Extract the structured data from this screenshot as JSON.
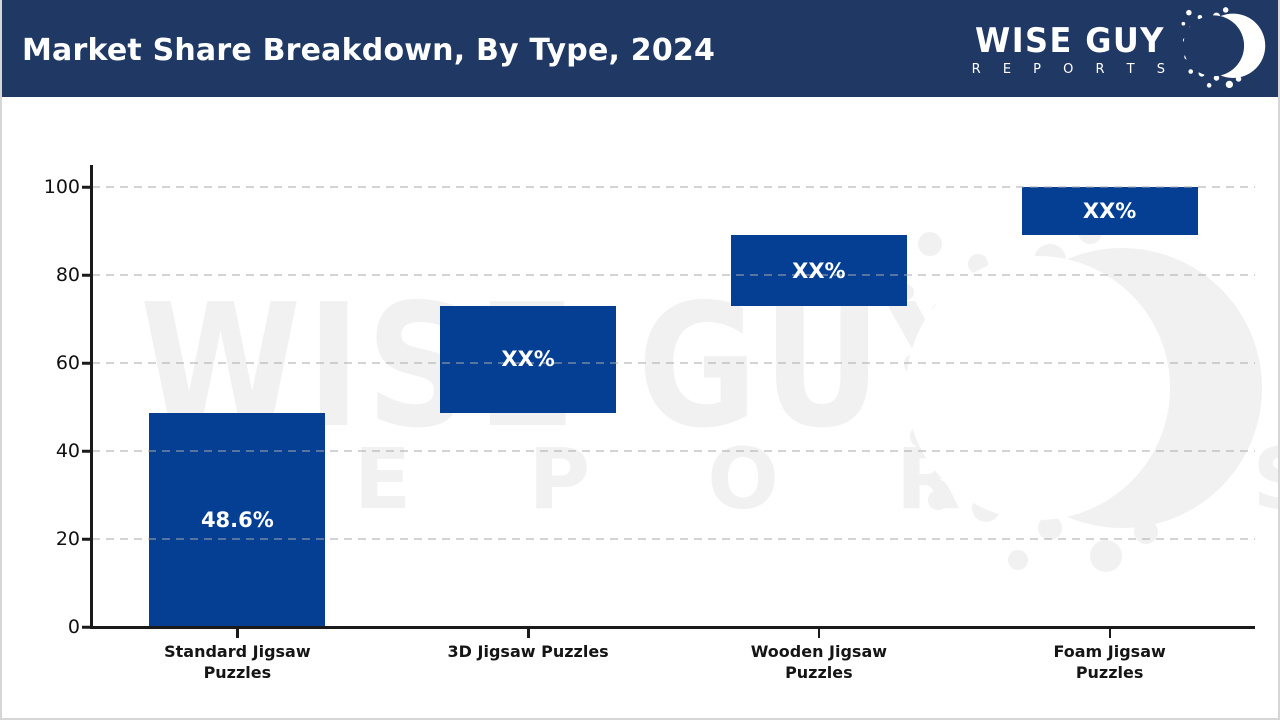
{
  "header": {
    "title": "Market Share Breakdown, By Type, 2024",
    "bg_color": "#1F3864",
    "logo": {
      "line1": "WISE GUY",
      "line2": "R E P O R T S"
    }
  },
  "watermark": {
    "line1": "WISE GUY",
    "line2": "R E P O R T S"
  },
  "colors": {
    "bar": "#043F94",
    "bar_label": "#FFFFFF",
    "gridline": "#D4D4D4",
    "axis": "#1A1A1A",
    "frame_border": "#D6D6D6"
  },
  "chart_data": {
    "type": "bar",
    "variant": "floating-waterfall",
    "title": "Market Share Breakdown, By Type, 2024",
    "categories": [
      "Standard Jigsaw Puzzles",
      "3D Jigsaw Puzzles",
      "Wooden Jigsaw Puzzles",
      "Foam Jigsaw Puzzles"
    ],
    "category_lines": [
      [
        "Standard Jigsaw",
        "Puzzles"
      ],
      [
        "3D Jigsaw Puzzles"
      ],
      [
        "Wooden Jigsaw",
        "Puzzles"
      ],
      [
        "Foam Jigsaw",
        "Puzzles"
      ]
    ],
    "segments": [
      {
        "category": "Standard Jigsaw Puzzles",
        "start": 0,
        "end": 48.6,
        "label": "48.6%"
      },
      {
        "category": "3D Jigsaw Puzzles",
        "start": 48.6,
        "end": 73,
        "label": "XX%"
      },
      {
        "category": "Wooden Jigsaw Puzzles",
        "start": 73,
        "end": 89,
        "label": "XX%"
      },
      {
        "category": "Foam Jigsaw Puzzles",
        "start": 89,
        "end": 100,
        "label": "XX%"
      }
    ],
    "values_shown": [
      "48.6%",
      "XX%",
      "XX%",
      "XX%"
    ],
    "ylim": [
      0,
      100
    ],
    "yticks": [
      0,
      20,
      40,
      60,
      80,
      100
    ],
    "xlabel": "",
    "ylabel": "",
    "grid": {
      "axis": "y",
      "style": "dashed",
      "drawn_over_bars": true
    },
    "legend": null
  }
}
